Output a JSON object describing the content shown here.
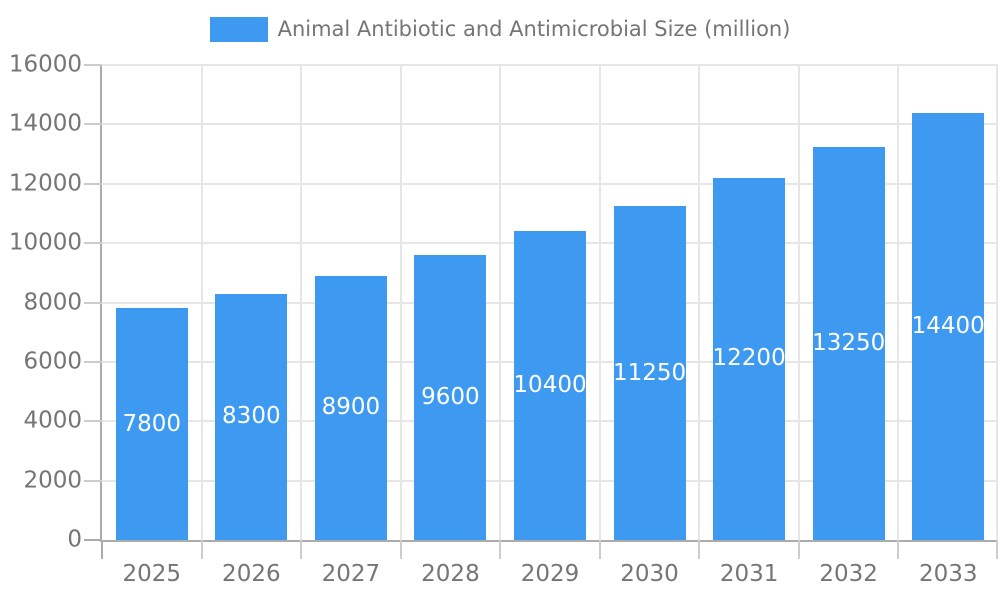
{
  "legend": {
    "label": "Animal Antibiotic and Antimicrobial Size (million)",
    "swatch_color": "#3d9af0"
  },
  "chart_data": {
    "type": "bar",
    "title": "Animal Antibiotic and Antimicrobial Size (million)",
    "categories": [
      "2025",
      "2026",
      "2027",
      "2028",
      "2029",
      "2030",
      "2031",
      "2032",
      "2033"
    ],
    "values": [
      7800,
      8300,
      8900,
      9600,
      10400,
      11250,
      12200,
      13250,
      14400
    ],
    "xlabel": "",
    "ylabel": "",
    "ylim": [
      0,
      16000
    ],
    "yticks": [
      0,
      2000,
      4000,
      6000,
      8000,
      10000,
      12000,
      14000,
      16000
    ],
    "grid": true,
    "legend_position": "top-center",
    "bar_color": "#3d9af0",
    "bar_label_color": "#ffffff",
    "grid_color": "#e6e6e6",
    "axis_color": "#ababab",
    "tick_color": "#cccccc",
    "label_color": "#757575"
  }
}
